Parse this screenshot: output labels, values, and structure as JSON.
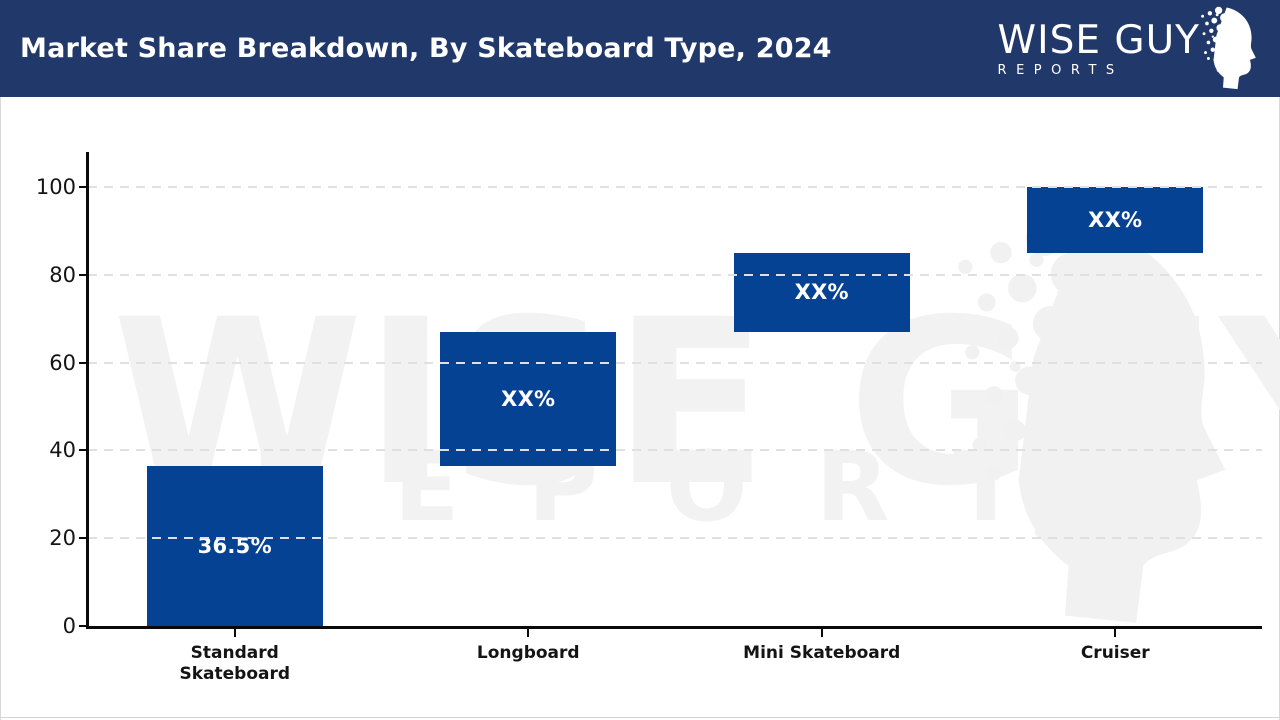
{
  "header": {
    "title": "Market Share Breakdown, By Skateboard Type, 2024",
    "logo": {
      "line1": "WISE GUY",
      "line2": "REPORTS"
    }
  },
  "watermark": {
    "line1": "WISE GUY",
    "line2": "REPORTS"
  },
  "colors": {
    "header_bg": "#21386B",
    "bar": "#054294",
    "bar_label": "#FFFFFF",
    "axis": "#0A0A0A",
    "gridline": "#E0E0E0",
    "tick_label": "#141414",
    "watermark": "#F2F2F2",
    "background": "#FFFFFF"
  },
  "chart_data": {
    "type": "bar",
    "subtype": "floating-waterfall",
    "title": "Market Share Breakdown, By Skateboard Type, 2024",
    "categories": [
      "Standard\nSkateboard",
      "Longboard",
      "Mini Skateboard",
      "Cruiser"
    ],
    "series": [
      {
        "ranges": [
          [
            0,
            36.5
          ],
          [
            36.5,
            67
          ],
          [
            67,
            85
          ],
          [
            85,
            100
          ]
        ],
        "values": [
          36.5,
          30.5,
          18,
          15
        ],
        "labels": [
          "36.5%",
          "XX%",
          "XX%",
          "XX%"
        ]
      }
    ],
    "ylim": [
      0,
      100
    ],
    "yticks": [
      0,
      20,
      40,
      60,
      80,
      100
    ],
    "xlabel": "",
    "ylabel": "",
    "grid": "horizontal-dashed-above-bars",
    "legend": "none",
    "bar_color": "#054294"
  }
}
